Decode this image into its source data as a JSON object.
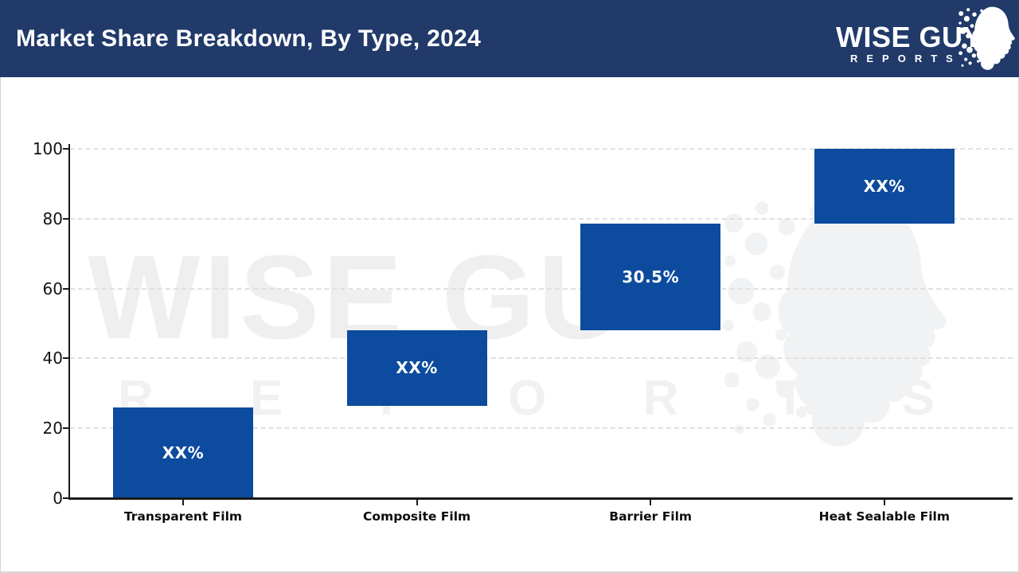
{
  "header": {
    "title": "Market Share Breakdown, By Type, 2024",
    "logo": {
      "name": "WISE GUY",
      "subtitle": "REPORTS"
    }
  },
  "watermark": {
    "text": "WISE GU",
    "subtext": "R E P O R T S"
  },
  "chart_data": {
    "type": "bar",
    "variant": "floating-waterfall-segments",
    "title": "Market Share Breakdown, By Type, 2024",
    "categories": [
      "Transparent Film",
      "Composite Film",
      "Barrier Film",
      "Heat Sealable Film"
    ],
    "segments": [
      {
        "category": "Transparent Film",
        "start": 0,
        "end": 26,
        "label": "XX%"
      },
      {
        "category": "Composite Film",
        "start": 26.5,
        "end": 48,
        "label": "XX%"
      },
      {
        "category": "Barrier Film",
        "start": 48,
        "end": 78.5,
        "label": "30.5%"
      },
      {
        "category": "Heat Sealable Film",
        "start": 78.5,
        "end": 100,
        "label": "XX%"
      }
    ],
    "ylim": [
      0,
      100
    ],
    "yticks": [
      0,
      20,
      40,
      60,
      80,
      100
    ],
    "xlabel": "",
    "ylabel": "",
    "grid": "dashed-horizontal",
    "legend": "none",
    "bar_color": "#0c4b9e",
    "label_color": "#ffffff"
  },
  "colors": {
    "header_bg": "#213a6a",
    "accent": "#0c4b9e",
    "watermark": "#f0f0f0",
    "grid": "#e0e0e0",
    "axis": "#1a1a1a"
  }
}
